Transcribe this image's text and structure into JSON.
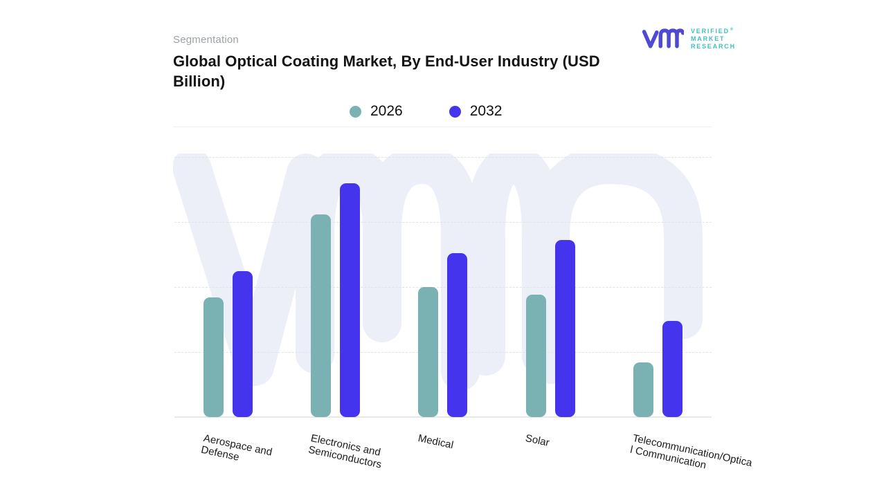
{
  "header": {
    "eyebrow": "Segmentation",
    "title": "Global Optical Coating Market, By End-User Industry (USD Billion)"
  },
  "logo": {
    "lines": [
      "VERIFIED",
      "MARKET",
      "RESEARCH"
    ],
    "registered_mark": "®",
    "glyph_color": "#4f49d4",
    "text_color": "#3fbfc2",
    "glyph_name": "vmr-monogram"
  },
  "legend": {
    "items": [
      {
        "label": "2026",
        "color": "#7ab1b3"
      },
      {
        "label": "2032",
        "color": "#4434ee"
      }
    ]
  },
  "chart_data": {
    "type": "bar",
    "title": "Global Optical Coating Market, By End-User Industry (USD Billion)",
    "categories": [
      "Aerospace and Defense",
      "Electronics and Semiconductors",
      "Medical",
      "Solar",
      "Telecommunication/Optical Communication"
    ],
    "category_label_lines": [
      [
        "Aerospace and",
        "Defense"
      ],
      [
        "Electronics and",
        "Semiconductors"
      ],
      [
        "Medical"
      ],
      [
        "Solar"
      ],
      [
        "Telecommunication/Optica",
        "l Communication"
      ]
    ],
    "series": [
      {
        "name": "2026",
        "color": "#7ab1b3",
        "values": [
          46,
          78,
          50,
          47,
          21
        ]
      },
      {
        "name": "2032",
        "color": "#4434ee",
        "values": [
          56,
          90,
          63,
          68,
          37
        ]
      }
    ],
    "ylim": [
      0,
      100
    ],
    "y_axis_visible": false,
    "grid": "horizontal-dashed",
    "gridline_count": 5,
    "legend_position": "top-center",
    "xlabel": "",
    "ylabel": "",
    "watermark_color": "#edeff8"
  }
}
